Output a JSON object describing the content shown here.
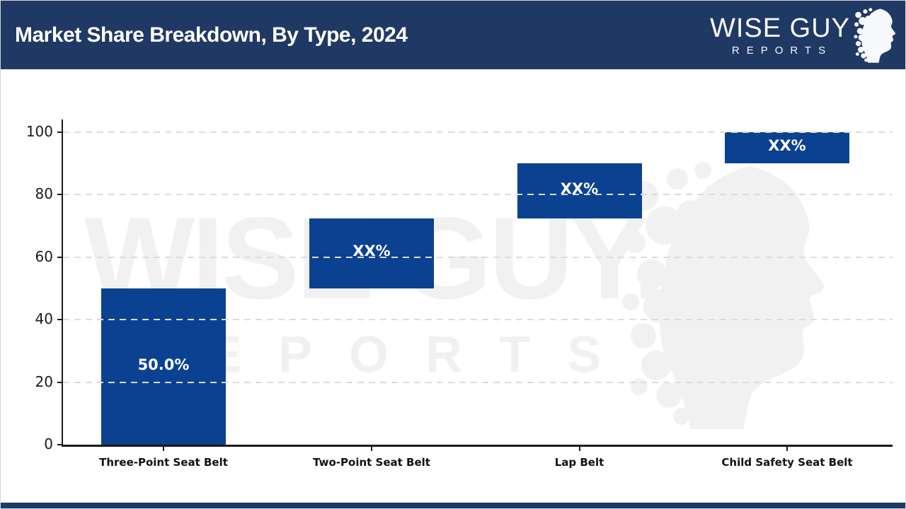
{
  "header": {
    "title": "Market Share Breakdown, By Type, 2024",
    "logo": {
      "line1": "WISE GUY",
      "line2": "REPORTS",
      "icon": "wiseguy-face-icon"
    }
  },
  "watermark": {
    "line1": "WISE GUY.",
    "line2": "REPORTS",
    "icon": "wiseguy-face-icon"
  },
  "colors": {
    "header_bg": "#203864",
    "footer_bg": "#203864",
    "bar": "#0B4191",
    "grid": "#DCDCDC",
    "axis": "#1A1A1A",
    "value_label": "#FFFFFF",
    "watermark": "#F1F1F1"
  },
  "chart_data": {
    "type": "bar",
    "variant": "floating segment bars (stacked waterfall of market share)",
    "title": "Market Share Breakdown, By Type, 2024",
    "categories": [
      "Three-Point Seat Belt",
      "Two-Point Seat Belt",
      "Lap Belt",
      "Child Safety Seat Belt"
    ],
    "segments": [
      {
        "category": "Three-Point Seat Belt",
        "start": 0,
        "end": 50,
        "label": "50.0%"
      },
      {
        "category": "Two-Point Seat Belt",
        "start": 50,
        "end": 72.5,
        "label": "XX%"
      },
      {
        "category": "Lap Belt",
        "start": 72.5,
        "end": 90,
        "label": "XX%"
      },
      {
        "category": "Child Safety Seat Belt",
        "start": 90,
        "end": 100,
        "label": "XX%"
      }
    ],
    "xlabel": "",
    "ylabel": "",
    "ylim": [
      0,
      100
    ],
    "yticks": [
      0,
      20,
      40,
      60,
      80,
      100
    ],
    "grid": "horizontal dashed light-gray lines drawn over bars",
    "legend": "none"
  }
}
